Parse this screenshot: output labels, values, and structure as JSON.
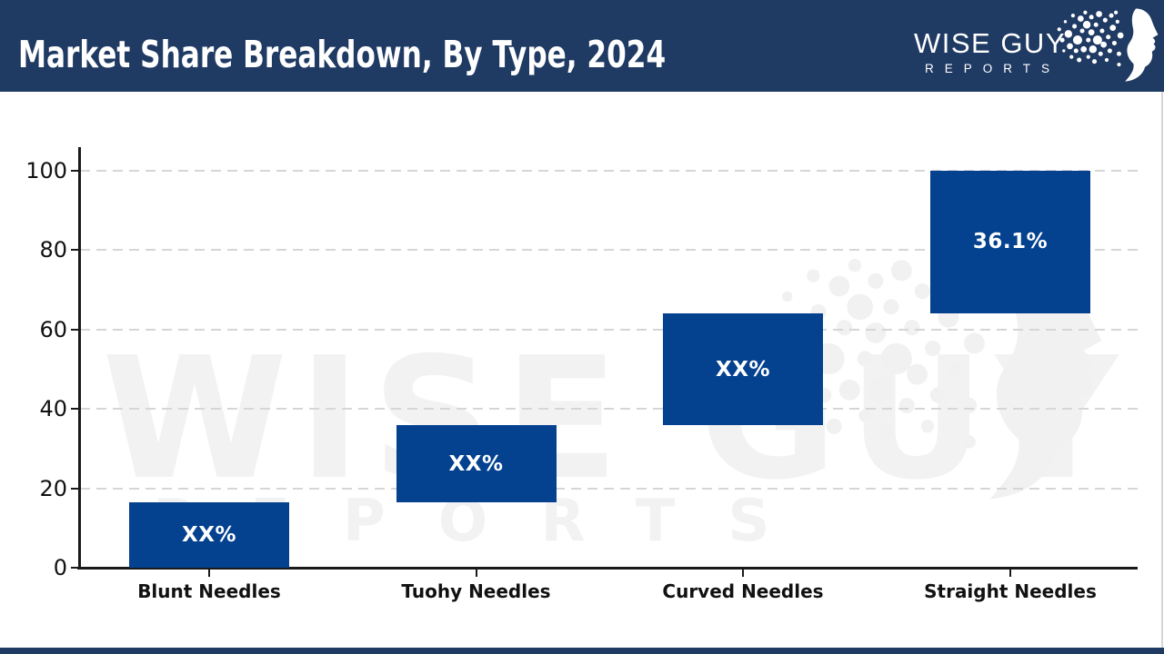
{
  "header": {
    "title": "Market Share Breakdown, By Type, 2024",
    "logo": {
      "line1": "WISE GUY",
      "line2": "REPORTS"
    }
  },
  "watermark": {
    "line1": "WISE GUY",
    "line2": "REPORTS"
  },
  "chart_data": {
    "type": "bar",
    "variant": "waterfall",
    "title": "Market Share Breakdown, By Type, 2024",
    "categories": [
      "Blunt Needles",
      "Tuohy Needles",
      "Curved Needles",
      "Straight Needles"
    ],
    "segments": [
      {
        "category": "Blunt Needles",
        "start": 0,
        "end": 16.4,
        "value": 16.4,
        "label": "XX%"
      },
      {
        "category": "Tuohy Needles",
        "start": 16.4,
        "end": 35.8,
        "value": 19.4,
        "label": "XX%"
      },
      {
        "category": "Curved Needles",
        "start": 35.8,
        "end": 63.9,
        "value": 28.1,
        "label": "XX%"
      },
      {
        "category": "Straight Needles",
        "start": 63.9,
        "end": 100.0,
        "value": 36.1,
        "label": "36.1%"
      }
    ],
    "xlabel": "",
    "ylabel": "",
    "ylim": [
      0,
      100
    ],
    "yticks": [
      0,
      20,
      40,
      60,
      80,
      100
    ],
    "grid": "horizontal-dashed",
    "legend_position": "none",
    "bar_color": "#04418f",
    "value_label_color": "#ffffff"
  },
  "colors": {
    "header_bg": "#1f3a63",
    "footer_bg": "#1f3a63",
    "bar": "#04418f",
    "gridline": "#d6d6d6",
    "axis": "#1a1a1a",
    "watermark": "#f2f2f2",
    "right_border": "#d6d6d6"
  }
}
